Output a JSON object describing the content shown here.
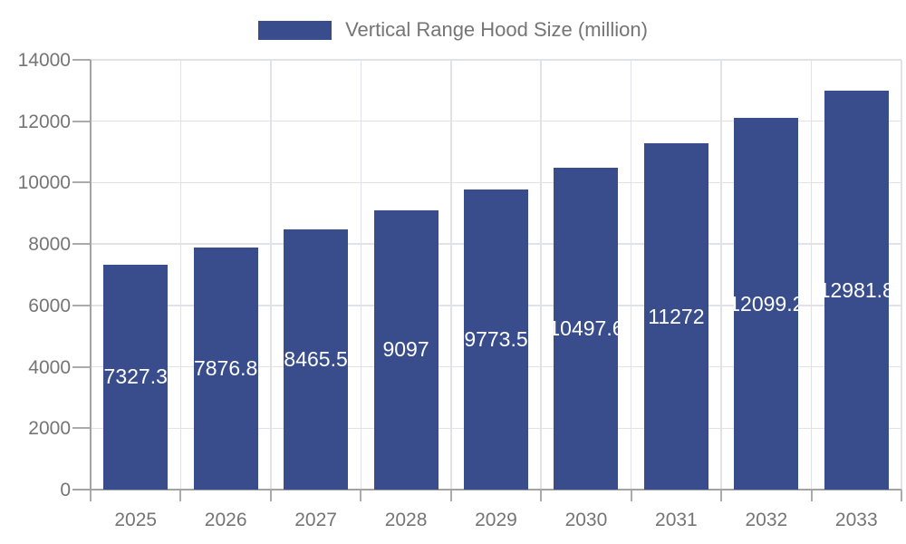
{
  "chart_data": {
    "type": "bar",
    "title": "",
    "legend": "Vertical Range Hood Size (million)",
    "legend_position": "top",
    "categories": [
      "2025",
      "2026",
      "2027",
      "2028",
      "2029",
      "2030",
      "2031",
      "2032",
      "2033"
    ],
    "series": [
      {
        "name": "Vertical Range Hood Size (million)",
        "values": [
          7327.3,
          7876.8,
          8465.5,
          9097,
          9773.5,
          10497.6,
          11272,
          12099.2,
          12981.8
        ]
      }
    ],
    "value_labels": [
      "7327.3",
      "7876.8",
      "8465.5",
      "9097",
      "9773.5",
      "10497.6",
      "11272",
      "12099.2",
      "12981.8"
    ],
    "xlabel": "",
    "ylabel": "",
    "ylim": [
      0,
      14000
    ],
    "ytick_step": 2000,
    "ytick_labels": [
      "0",
      "2000",
      "4000",
      "6000",
      "8000",
      "10000",
      "12000",
      "14000"
    ],
    "grid": true,
    "colors": {
      "bar": "#394d8c",
      "axis_text": "#757575",
      "value_text": "#ffffff",
      "grid_line": "#e1e1e8",
      "axis_line": "#a3a3a3",
      "tick": "#ababab",
      "background": "#ffffff"
    }
  }
}
